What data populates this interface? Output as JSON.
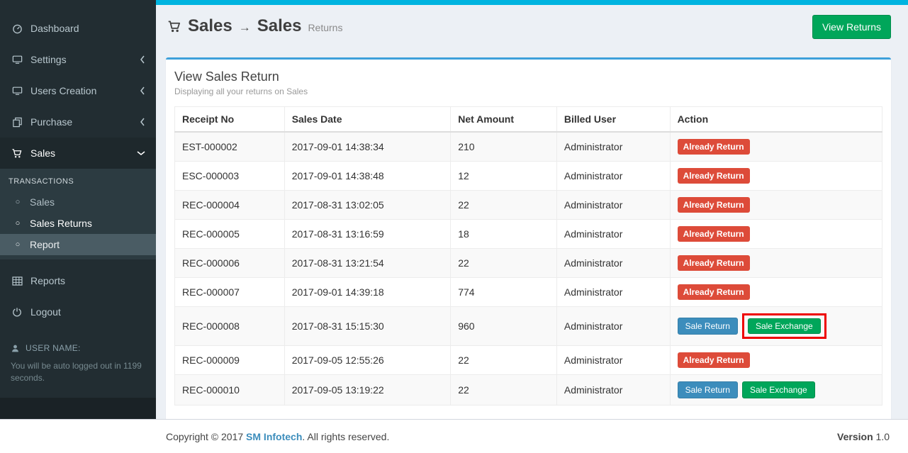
{
  "sidebar": {
    "items": [
      {
        "label": "Dashboard"
      },
      {
        "label": "Settings"
      },
      {
        "label": "Users Creation"
      },
      {
        "label": "Purchase"
      },
      {
        "label": "Sales"
      }
    ],
    "section_label": "TRANSACTIONS",
    "sub_items": [
      {
        "label": "Sales"
      },
      {
        "label": "Sales Returns"
      },
      {
        "label": "Report"
      }
    ],
    "bottom_items": [
      {
        "label": "Reports"
      },
      {
        "label": "Logout"
      }
    ],
    "user_label": "USER NAME:",
    "logout_warning": "You will be auto logged out in 1199 seconds."
  },
  "header": {
    "breadcrumb_root": "Sales",
    "breadcrumb_arrow": "→",
    "breadcrumb_page": "Sales",
    "breadcrumb_sub": "Returns",
    "view_returns_button": "View Returns"
  },
  "panel": {
    "title": "View Sales Return",
    "subtitle": "Displaying all your returns on Sales"
  },
  "table": {
    "columns": [
      "Receipt No",
      "Sales Date",
      "Net Amount",
      "Billed User",
      "Action"
    ],
    "rows": [
      {
        "receipt": "EST-000002",
        "date": "2017-09-01 14:38:34",
        "amount": "210",
        "user": "Administrator",
        "actions": [
          {
            "label": "Already Return",
            "style": "danger"
          }
        ]
      },
      {
        "receipt": "ESC-000003",
        "date": "2017-09-01 14:38:48",
        "amount": "12",
        "user": "Administrator",
        "actions": [
          {
            "label": "Already Return",
            "style": "danger"
          }
        ]
      },
      {
        "receipt": "REC-000004",
        "date": "2017-08-31 13:02:05",
        "amount": "22",
        "user": "Administrator",
        "actions": [
          {
            "label": "Already Return",
            "style": "danger"
          }
        ]
      },
      {
        "receipt": "REC-000005",
        "date": "2017-08-31 13:16:59",
        "amount": "18",
        "user": "Administrator",
        "actions": [
          {
            "label": "Already Return",
            "style": "danger"
          }
        ]
      },
      {
        "receipt": "REC-000006",
        "date": "2017-08-31 13:21:54",
        "amount": "22",
        "user": "Administrator",
        "actions": [
          {
            "label": "Already Return",
            "style": "danger"
          }
        ]
      },
      {
        "receipt": "REC-000007",
        "date": "2017-09-01 14:39:18",
        "amount": "774",
        "user": "Administrator",
        "actions": [
          {
            "label": "Already Return",
            "style": "danger"
          }
        ]
      },
      {
        "receipt": "REC-000008",
        "date": "2017-08-31 15:15:30",
        "amount": "960",
        "user": "Administrator",
        "actions": [
          {
            "label": "Sale Return",
            "style": "primary"
          },
          {
            "label": "Sale Exchange",
            "style": "success",
            "highlighted": true
          }
        ]
      },
      {
        "receipt": "REC-000009",
        "date": "2017-09-05 12:55:26",
        "amount": "22",
        "user": "Administrator",
        "actions": [
          {
            "label": "Already Return",
            "style": "danger"
          }
        ]
      },
      {
        "receipt": "REC-000010",
        "date": "2017-09-05 13:19:22",
        "amount": "22",
        "user": "Administrator",
        "actions": [
          {
            "label": "Sale Return",
            "style": "primary"
          },
          {
            "label": "Sale Exchange",
            "style": "success"
          }
        ]
      }
    ]
  },
  "footer": {
    "copyright_prefix": "Copyright © 2017 ",
    "brand": "SM Infotech",
    "copyright_suffix": ". All rights reserved.",
    "version_label": "Version",
    "version_value": "1.0"
  },
  "colors": {
    "topbar": "#00b4e0",
    "primary": "#3c8dbc",
    "success": "#00a65a",
    "danger": "#dd4b39",
    "highlight_box": "#ee0000",
    "sidebar_bg": "#222d32"
  },
  "icons": {
    "breadcrumb": "cart-icon",
    "dashboard": "gauge-icon",
    "settings": "monitor-icon",
    "users_creation": "monitor-icon",
    "purchase": "copy-icon",
    "sales": "cart-icon",
    "submenu": "circle-o-icon",
    "reports": "table-icon",
    "logout": "power-icon",
    "user": "user-icon"
  }
}
